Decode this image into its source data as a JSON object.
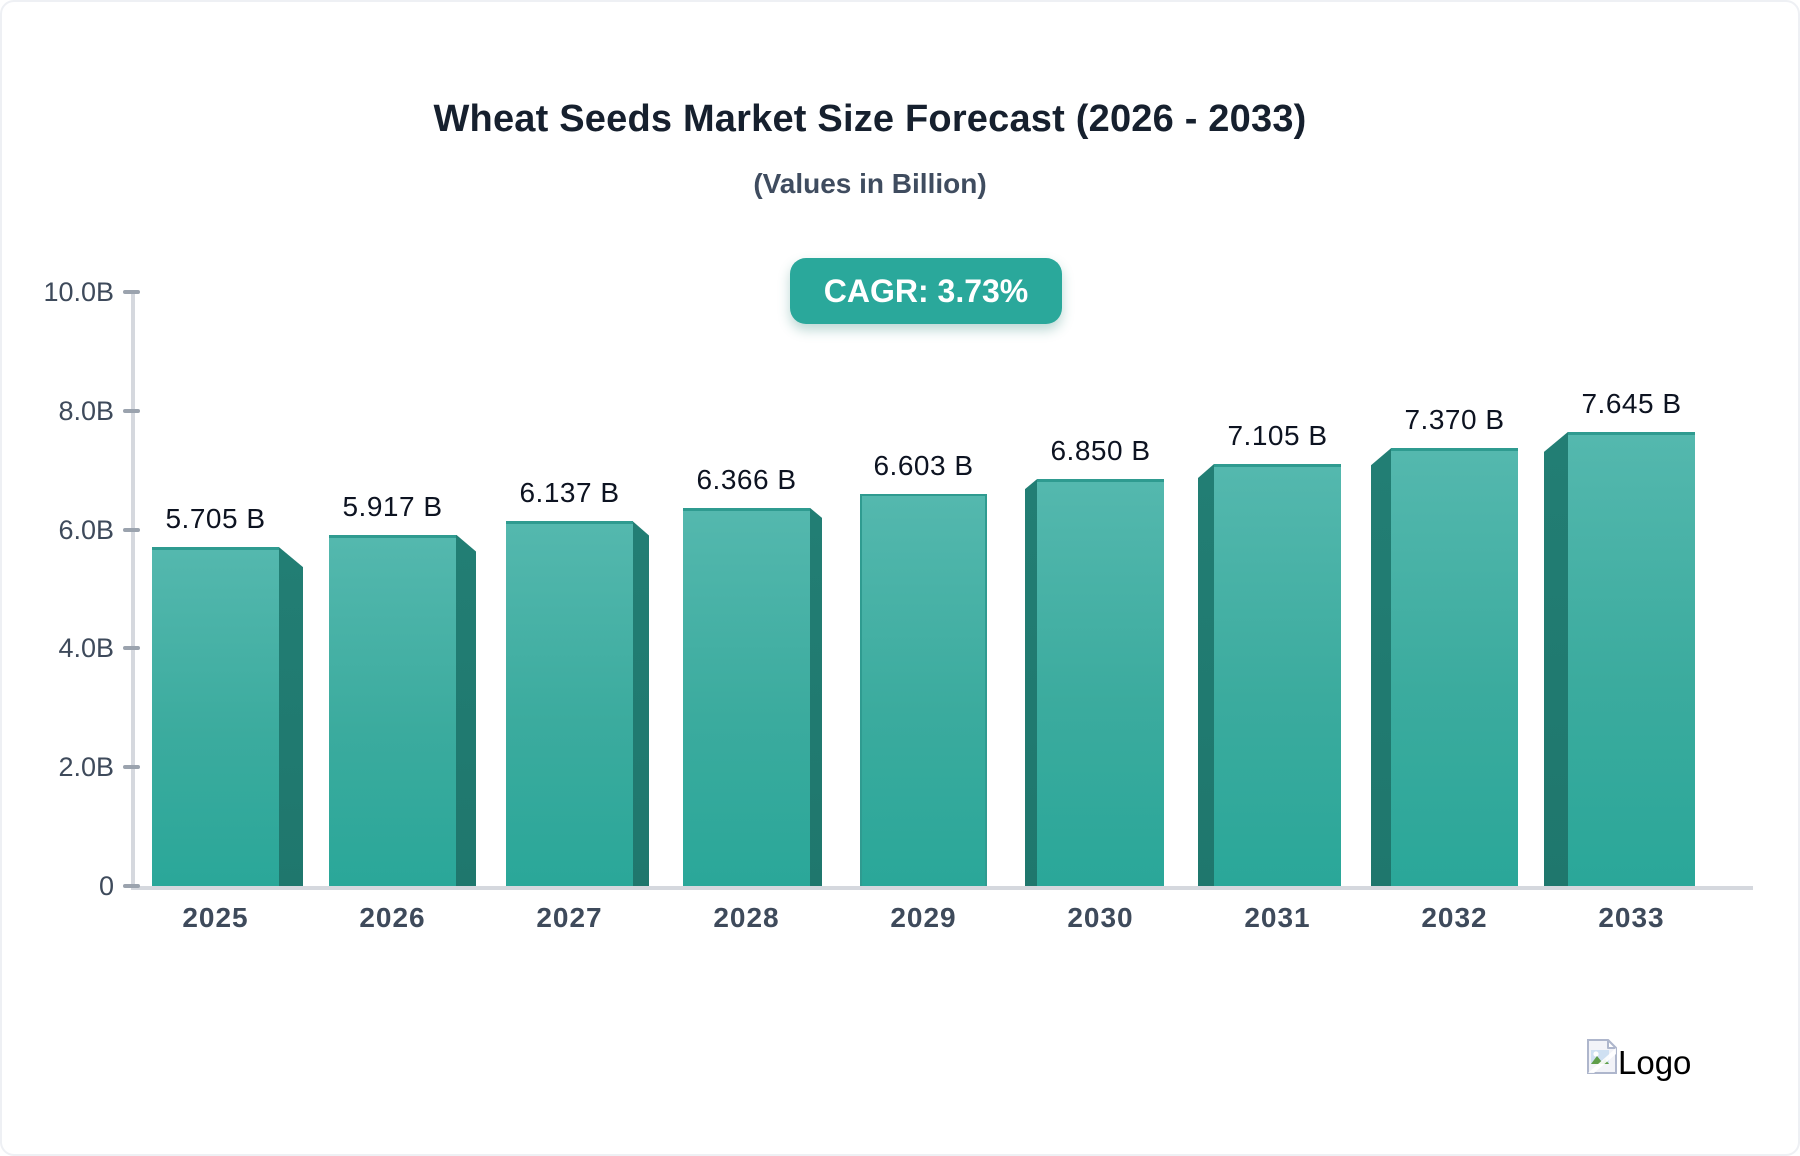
{
  "page": {
    "title": "Wheat Seeds Market Size Forecast (2026 - 2033)",
    "subtitle": "(Values in Billion)",
    "cagr_badge": "CAGR: 3.73%",
    "logo_alt_text": "Logo",
    "logo_icon": "broken-image-icon"
  },
  "chart_data": {
    "type": "bar",
    "title": "Wheat Seeds Market Size Forecast (2026 - 2033)",
    "subtitle": "(Values in Billion)",
    "annotation": "CAGR: 3.73%",
    "cagr_percent": 3.73,
    "categories": [
      "2025",
      "2026",
      "2027",
      "2028",
      "2029",
      "2030",
      "2031",
      "2032",
      "2033"
    ],
    "values": [
      5.705,
      5.917,
      6.137,
      6.366,
      6.603,
      6.85,
      7.105,
      7.37,
      7.645
    ],
    "value_labels": [
      "5.705 B",
      "5.917 B",
      "6.137 B",
      "6.366 B",
      "6.603 B",
      "6.850 B",
      "7.105 B",
      "7.370 B",
      "7.645 B"
    ],
    "unit": "Billion",
    "xlabel": "",
    "ylabel": "",
    "y_ticks": [
      "0",
      "2.0B",
      "4.0B",
      "6.0B",
      "8.0B",
      "10.0B"
    ],
    "y_tick_values": [
      0,
      2,
      4,
      6,
      8,
      10
    ],
    "ylim": [
      0,
      10
    ],
    "grid": false,
    "legend_position": "none",
    "style": "3d-columns-center-perspective",
    "colors": {
      "bar_top": "#54b8ae",
      "bar_bottom": "#2aa799",
      "bar_side": "#20786f",
      "bar_edge": "#2f9b90",
      "badge_background": "#2aa89b",
      "badge_text": "#ffffff",
      "axis_line": "#d5d8de",
      "tick_dash": "#9ba3ae",
      "axis_label": "#3e4a5b",
      "value_label": "#0d1321",
      "title": "#16202e",
      "subtitle": "#3f4c5f"
    }
  }
}
